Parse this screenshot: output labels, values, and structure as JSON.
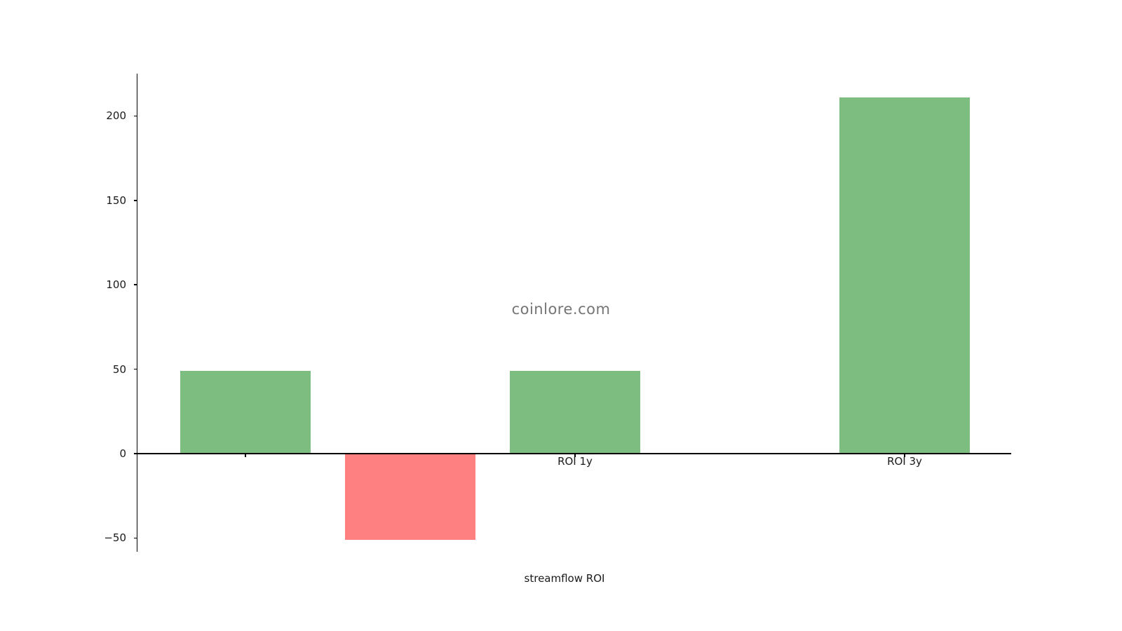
{
  "chart_data": {
    "type": "bar",
    "title": "",
    "xlabel": "streamflow ROI",
    "ylabel": "",
    "watermark": "coinlore.com",
    "categories": [
      "",
      "",
      "ROI 1y",
      "",
      "ROI 3y"
    ],
    "values": [
      49,
      -51,
      49,
      null,
      211
    ],
    "bar_colors": [
      "#7dbe80",
      "#ff8080",
      "#7dbe80",
      null,
      "#7dbe80"
    ],
    "positive_color": "#7dbe80",
    "negative_color": "#ff8080",
    "yticks": [
      {
        "value": -50,
        "label": "−50"
      },
      {
        "value": 0,
        "label": "0"
      },
      {
        "value": 50,
        "label": "50"
      },
      {
        "value": 100,
        "label": "100"
      },
      {
        "value": 150,
        "label": "150"
      },
      {
        "value": 200,
        "label": "200"
      }
    ],
    "xticks_visible": [
      0,
      2,
      4
    ],
    "ylim": [
      -58,
      225
    ],
    "grid": false,
    "legend": null,
    "axis_color": "#000000",
    "text_color": "#1a1a1a",
    "watermark_color": "#757575"
  }
}
